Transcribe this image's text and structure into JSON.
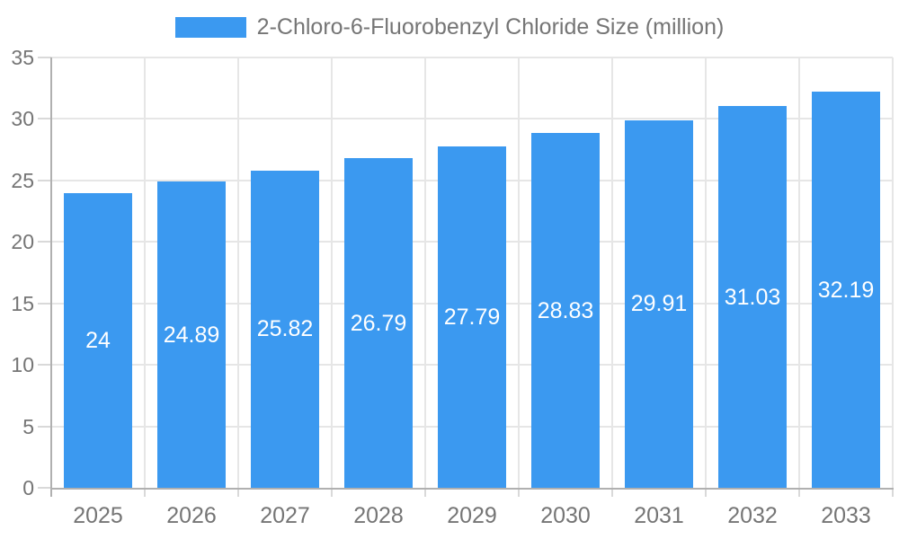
{
  "legend": {
    "label": "2-Chloro-6-Fluorobenzyl Chloride Size (million)"
  },
  "colors": {
    "bar": "#3B99F0",
    "gridline": "#E6E6E6",
    "tick": "#D9D9D9",
    "axis_line": "#B0B0B0",
    "axis_text": "#757575",
    "value_label": "#FFFFFF"
  },
  "chart_data": {
    "type": "bar",
    "title": "2-Chloro-6-Fluorobenzyl Chloride Size (million)",
    "categories": [
      "2025",
      "2026",
      "2027",
      "2028",
      "2029",
      "2030",
      "2031",
      "2032",
      "2033"
    ],
    "values": [
      24,
      24.89,
      25.82,
      26.79,
      27.79,
      28.83,
      29.91,
      31.03,
      32.19
    ],
    "xlabel": "",
    "ylabel": "",
    "ylim": [
      0,
      35
    ],
    "yticks": [
      0,
      5,
      10,
      15,
      20,
      25,
      30,
      35
    ],
    "grid": true,
    "legend_position": "top",
    "value_labels": "inside-center"
  }
}
